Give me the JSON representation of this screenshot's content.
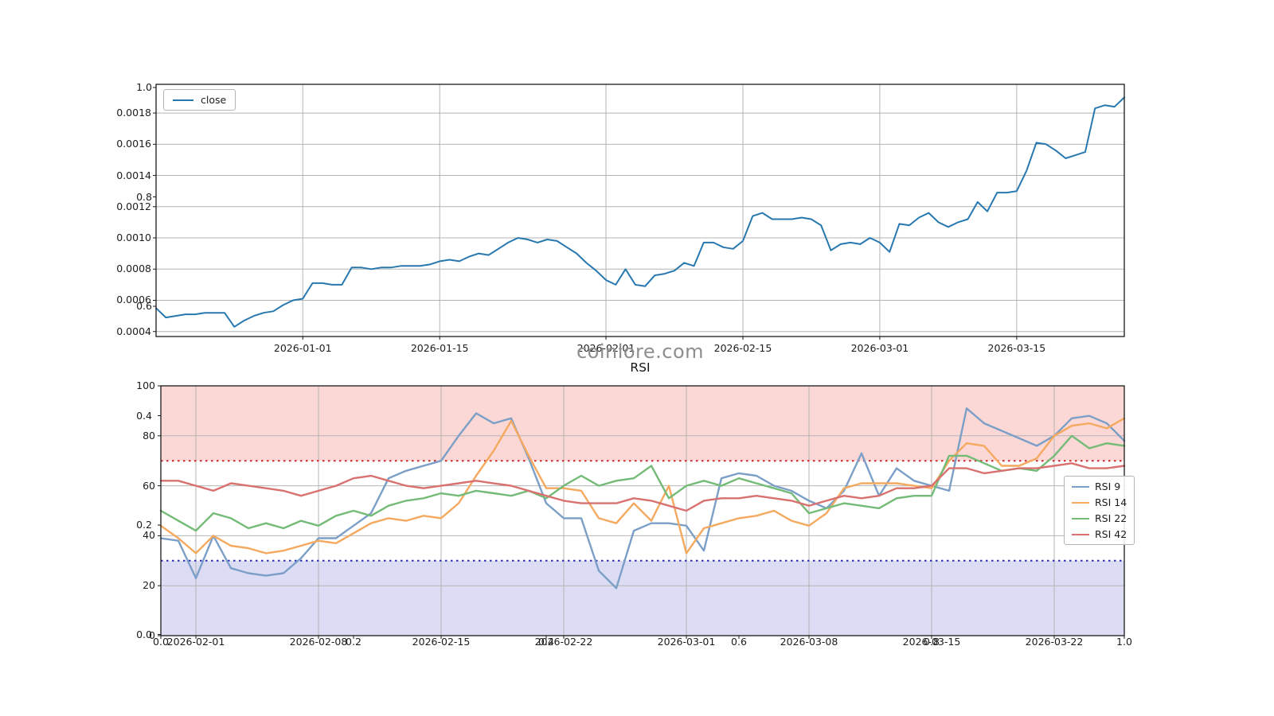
{
  "watermark": "coinlore.com",
  "top_chart": {
    "legend_label": "close"
  },
  "rsi_chart": {
    "title": "RSI"
  },
  "overlay_axis": {
    "y_labels": [
      "1.0",
      "0.8",
      "0.6",
      "0.4",
      "0.2",
      "0.0"
    ],
    "x_labels": [
      "0.0",
      "0.2",
      "0.4",
      "0.6",
      "0.8",
      "1.0"
    ]
  },
  "chart_data": [
    {
      "type": "line",
      "name": "price-panel",
      "title": "",
      "xlabel": "",
      "ylabel": "",
      "x_start_date": "2025-12-17",
      "x_ticks": [
        {
          "label": "2026-01-01",
          "i": 15
        },
        {
          "label": "2026-01-15",
          "i": 29
        },
        {
          "label": "2026-02-01",
          "i": 46
        },
        {
          "label": "2026-02-15",
          "i": 60
        },
        {
          "label": "2026-03-01",
          "i": 74
        },
        {
          "label": "2026-03-15",
          "i": 88
        }
      ],
      "y_ticks": [
        0.0004,
        0.0006,
        0.0008,
        0.001,
        0.0012,
        0.0014,
        0.0016,
        0.0018
      ],
      "y_tick_labels": [
        "0.0004",
        "0.0006",
        "0.0008",
        "0.0010",
        "0.0012",
        "0.0014",
        "0.0016",
        "0.0018"
      ],
      "ylim": [
        0.000368,
        0.001984
      ],
      "grid": true,
      "legend_position": "upper-left",
      "series": [
        {
          "name": "close",
          "color": "#2878b0",
          "values": [
            0.00055,
            0.00049,
            0.0005,
            0.00051,
            0.00051,
            0.00052,
            0.00052,
            0.00052,
            0.00043,
            0.00047,
            0.0005,
            0.00052,
            0.00053,
            0.00057,
            0.0006,
            0.00061,
            0.00071,
            0.00071,
            0.0007,
            0.0007,
            0.00081,
            0.00081,
            0.0008,
            0.00081,
            0.00081,
            0.00082,
            0.00082,
            0.00082,
            0.00083,
            0.00085,
            0.00086,
            0.00085,
            0.00088,
            0.0009,
            0.00089,
            0.00093,
            0.00097,
            0.001,
            0.00099,
            0.00097,
            0.00099,
            0.00098,
            0.00094,
            0.0009,
            0.00084,
            0.00079,
            0.00073,
            0.0007,
            0.0008,
            0.0007,
            0.00069,
            0.00076,
            0.00077,
            0.00079,
            0.00084,
            0.00082,
            0.00097,
            0.00097,
            0.00094,
            0.00093,
            0.00098,
            0.00114,
            0.00116,
            0.00112,
            0.00112,
            0.00112,
            0.00113,
            0.00112,
            0.00108,
            0.00092,
            0.00096,
            0.00097,
            0.00096,
            0.001,
            0.00097,
            0.00091,
            0.00109,
            0.00108,
            0.00113,
            0.00116,
            0.0011,
            0.00107,
            0.0011,
            0.00112,
            0.00123,
            0.00117,
            0.00129,
            0.00129,
            0.0013,
            0.00143,
            0.00161,
            0.0016,
            0.00156,
            0.00151,
            0.00153,
            0.00155,
            0.00183,
            0.00185,
            0.00184,
            0.0019
          ]
        }
      ]
    },
    {
      "type": "line",
      "name": "rsi-panel",
      "title": "RSI",
      "xlabel": "",
      "ylabel": "",
      "x_start_date": "2026-01-30",
      "x_ticks": [
        {
          "label": "2026-02-01",
          "i": 2
        },
        {
          "label": "2026-02-08",
          "i": 9
        },
        {
          "label": "2026-02-15",
          "i": 16
        },
        {
          "label": "2026-02-22",
          "i": 23
        },
        {
          "label": "2026-03-01",
          "i": 30
        },
        {
          "label": "2026-03-08",
          "i": 37
        },
        {
          "label": "2026-03-15",
          "i": 44
        },
        {
          "label": "2026-03-22",
          "i": 51
        }
      ],
      "y_ticks": [
        0,
        20,
        40,
        60,
        80,
        100
      ],
      "y_tick_labels": [
        "0",
        "20",
        "40",
        "60",
        "80",
        "100"
      ],
      "ylim": [
        0,
        100
      ],
      "grid": true,
      "legend_position": "right",
      "overbought": {
        "level": 70,
        "line_color": "#cc2529",
        "band_color": "#fbd8d6"
      },
      "oversold": {
        "level": 30,
        "line_color": "#2a2ab5",
        "band_color": "#dcdcf4"
      },
      "series": [
        {
          "name": "RSI 9",
          "color": "#7b9fc7",
          "values": [
            39,
            38,
            23,
            40,
            27,
            25,
            24,
            25,
            31,
            39,
            39,
            44,
            49,
            63,
            66,
            68,
            70,
            80,
            89,
            85,
            87,
            71,
            53,
            47,
            47,
            26,
            19,
            42,
            45,
            45,
            44,
            34,
            63,
            65,
            64,
            60,
            58,
            54,
            51,
            58,
            73,
            56,
            67,
            62,
            60,
            58,
            91,
            85,
            82,
            79,
            76,
            80,
            87,
            88,
            85,
            78
          ]
        },
        {
          "name": "RSI 14",
          "color": "#f5a95f",
          "values": [
            44,
            39,
            33,
            40,
            36,
            35,
            33,
            34,
            36,
            38,
            37,
            41,
            45,
            47,
            46,
            48,
            47,
            53,
            64,
            74,
            86,
            72,
            59,
            59,
            58,
            47,
            45,
            53,
            46,
            60,
            33,
            43,
            45,
            47,
            48,
            50,
            46,
            44,
            49,
            59,
            61,
            61,
            61,
            60,
            59,
            70,
            77,
            76,
            68,
            68,
            71,
            80,
            84,
            85,
            83,
            87
          ]
        },
        {
          "name": "RSI 22",
          "color": "#74bb77",
          "values": [
            50,
            46,
            42,
            49,
            47,
            43,
            45,
            43,
            46,
            44,
            48,
            50,
            48,
            52,
            54,
            55,
            57,
            56,
            58,
            57,
            56,
            58,
            55,
            60,
            64,
            60,
            62,
            63,
            68,
            55,
            60,
            62,
            60,
            63,
            61,
            59,
            57,
            49,
            51,
            53,
            52,
            51,
            55,
            56,
            56,
            72,
            72,
            69,
            66,
            67,
            66,
            72,
            80,
            75,
            77,
            76
          ]
        },
        {
          "name": "RSI 42",
          "color": "#d8716f",
          "values": [
            62,
            62,
            60,
            58,
            61,
            60,
            59,
            58,
            56,
            58,
            60,
            63,
            64,
            62,
            60,
            59,
            60,
            61,
            62,
            61,
            60,
            58,
            56,
            54,
            53,
            53,
            53,
            55,
            54,
            52,
            50,
            54,
            55,
            55,
            56,
            55,
            54,
            52,
            54,
            56,
            55,
            56,
            59,
            59,
            60,
            67,
            67,
            65,
            66,
            67,
            67,
            68,
            69,
            67,
            67,
            68
          ]
        }
      ]
    }
  ]
}
